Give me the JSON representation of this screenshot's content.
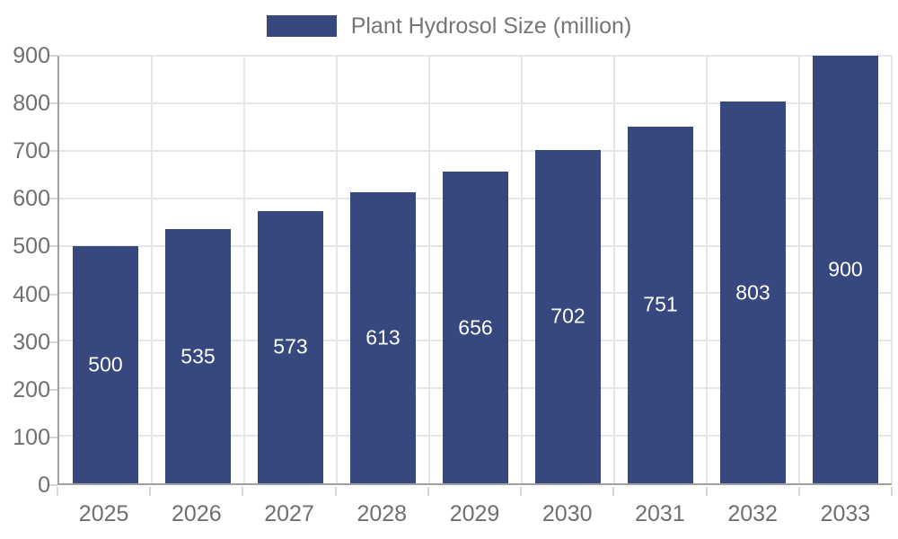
{
  "legend": {
    "label": "Plant Hydrosol Size (million)"
  },
  "chart_data": {
    "type": "bar",
    "title": "Plant Hydrosol Size (million)",
    "categories": [
      "2025",
      "2026",
      "2027",
      "2028",
      "2029",
      "2030",
      "2031",
      "2032",
      "2033"
    ],
    "values": [
      500,
      535,
      573,
      613,
      656,
      702,
      751,
      803,
      900
    ],
    "xlabel": "",
    "ylabel": "",
    "ylim": [
      0,
      900
    ],
    "yticks": [
      0,
      100,
      200,
      300,
      400,
      500,
      600,
      700,
      800,
      900
    ],
    "grid": true,
    "legend_position": "top-center",
    "value_labels_inside_bars": true,
    "colors": {
      "bar": "#36487e",
      "value_label": "#ffffff",
      "axis_line": "#a0a0a0",
      "grid_line": "#e5e5ea",
      "tick_mark": "#d3d5e0",
      "axis_text": "#6f6f6f",
      "legend_text": "#757575",
      "background": "#ffffff"
    }
  }
}
